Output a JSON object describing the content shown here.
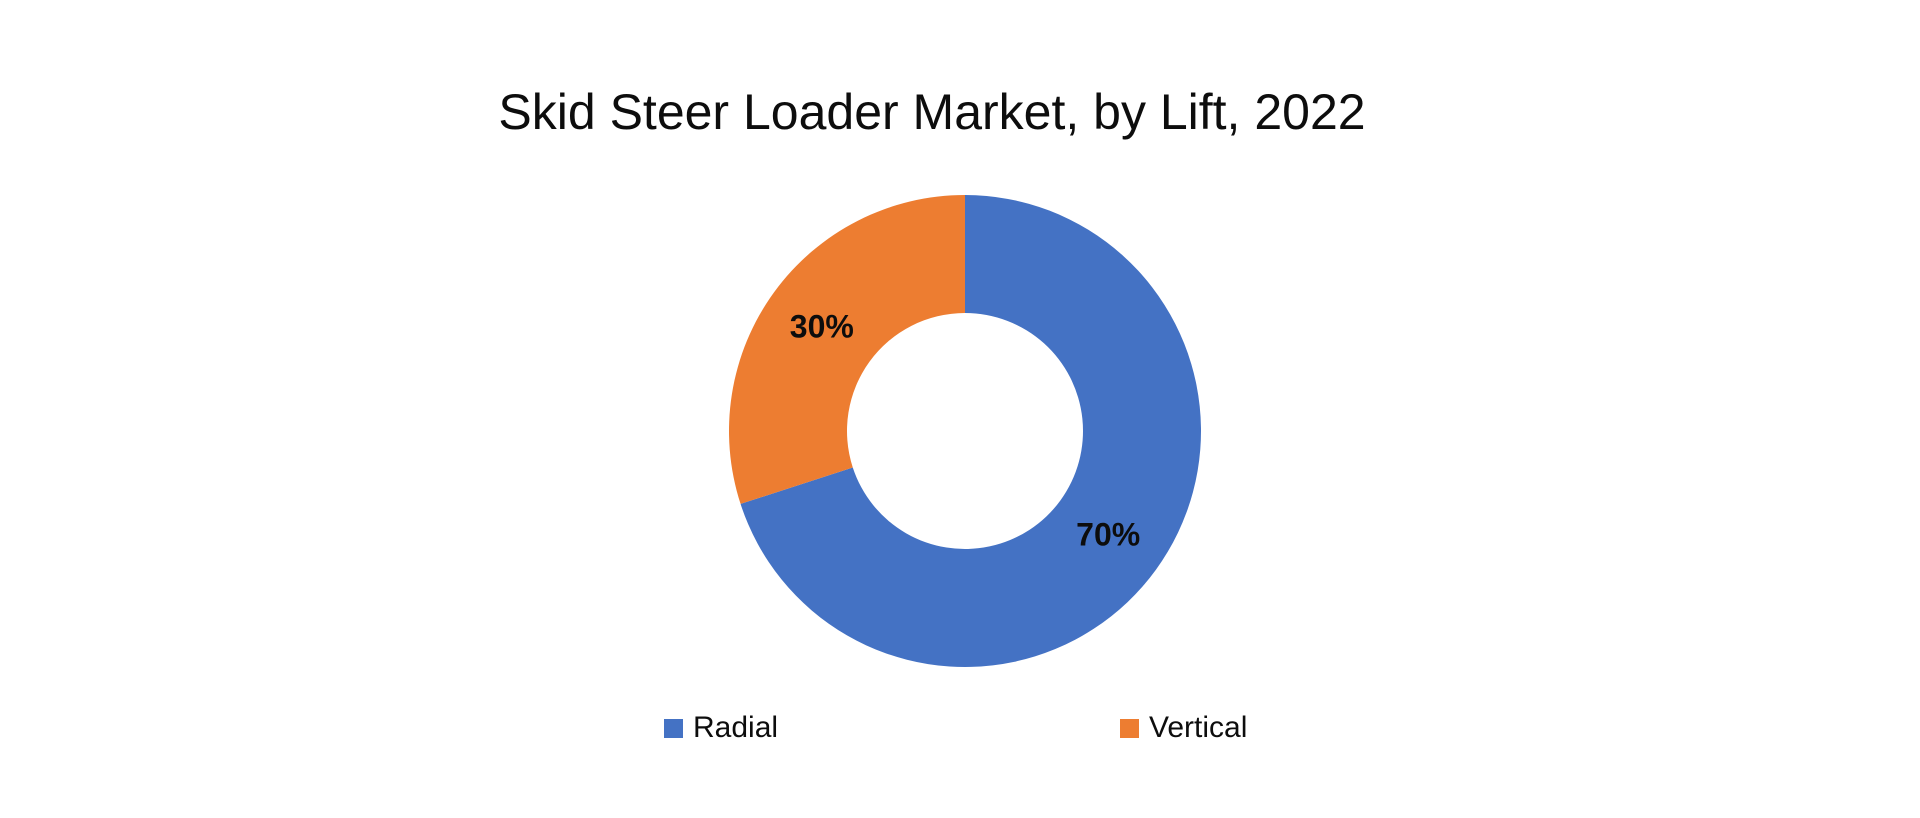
{
  "title": "Skid Steer Loader Market, by Lift, 2022",
  "chart_data": {
    "type": "pie",
    "subtype": "donut",
    "title": "Skid Steer Loader Market, by Lift, 2022",
    "categories": [
      "Radial",
      "Vertical"
    ],
    "values": [
      70,
      30
    ],
    "data_labels": [
      "70%",
      "30%"
    ],
    "colors": [
      "#4472C4",
      "#ED7D31"
    ],
    "start_angle_deg": 0,
    "direction": "clockwise",
    "donut_hole_ratio": 0.5,
    "legend_position": "bottom",
    "grid": false
  },
  "legend": {
    "items": [
      {
        "label": "Radial",
        "color": "#4472C4"
      },
      {
        "label": "Vertical",
        "color": "#ED7D31"
      }
    ]
  },
  "colors": {
    "background": "#ffffff",
    "title_text": "#0d0d0d",
    "label_text": "#0d0d0d"
  }
}
